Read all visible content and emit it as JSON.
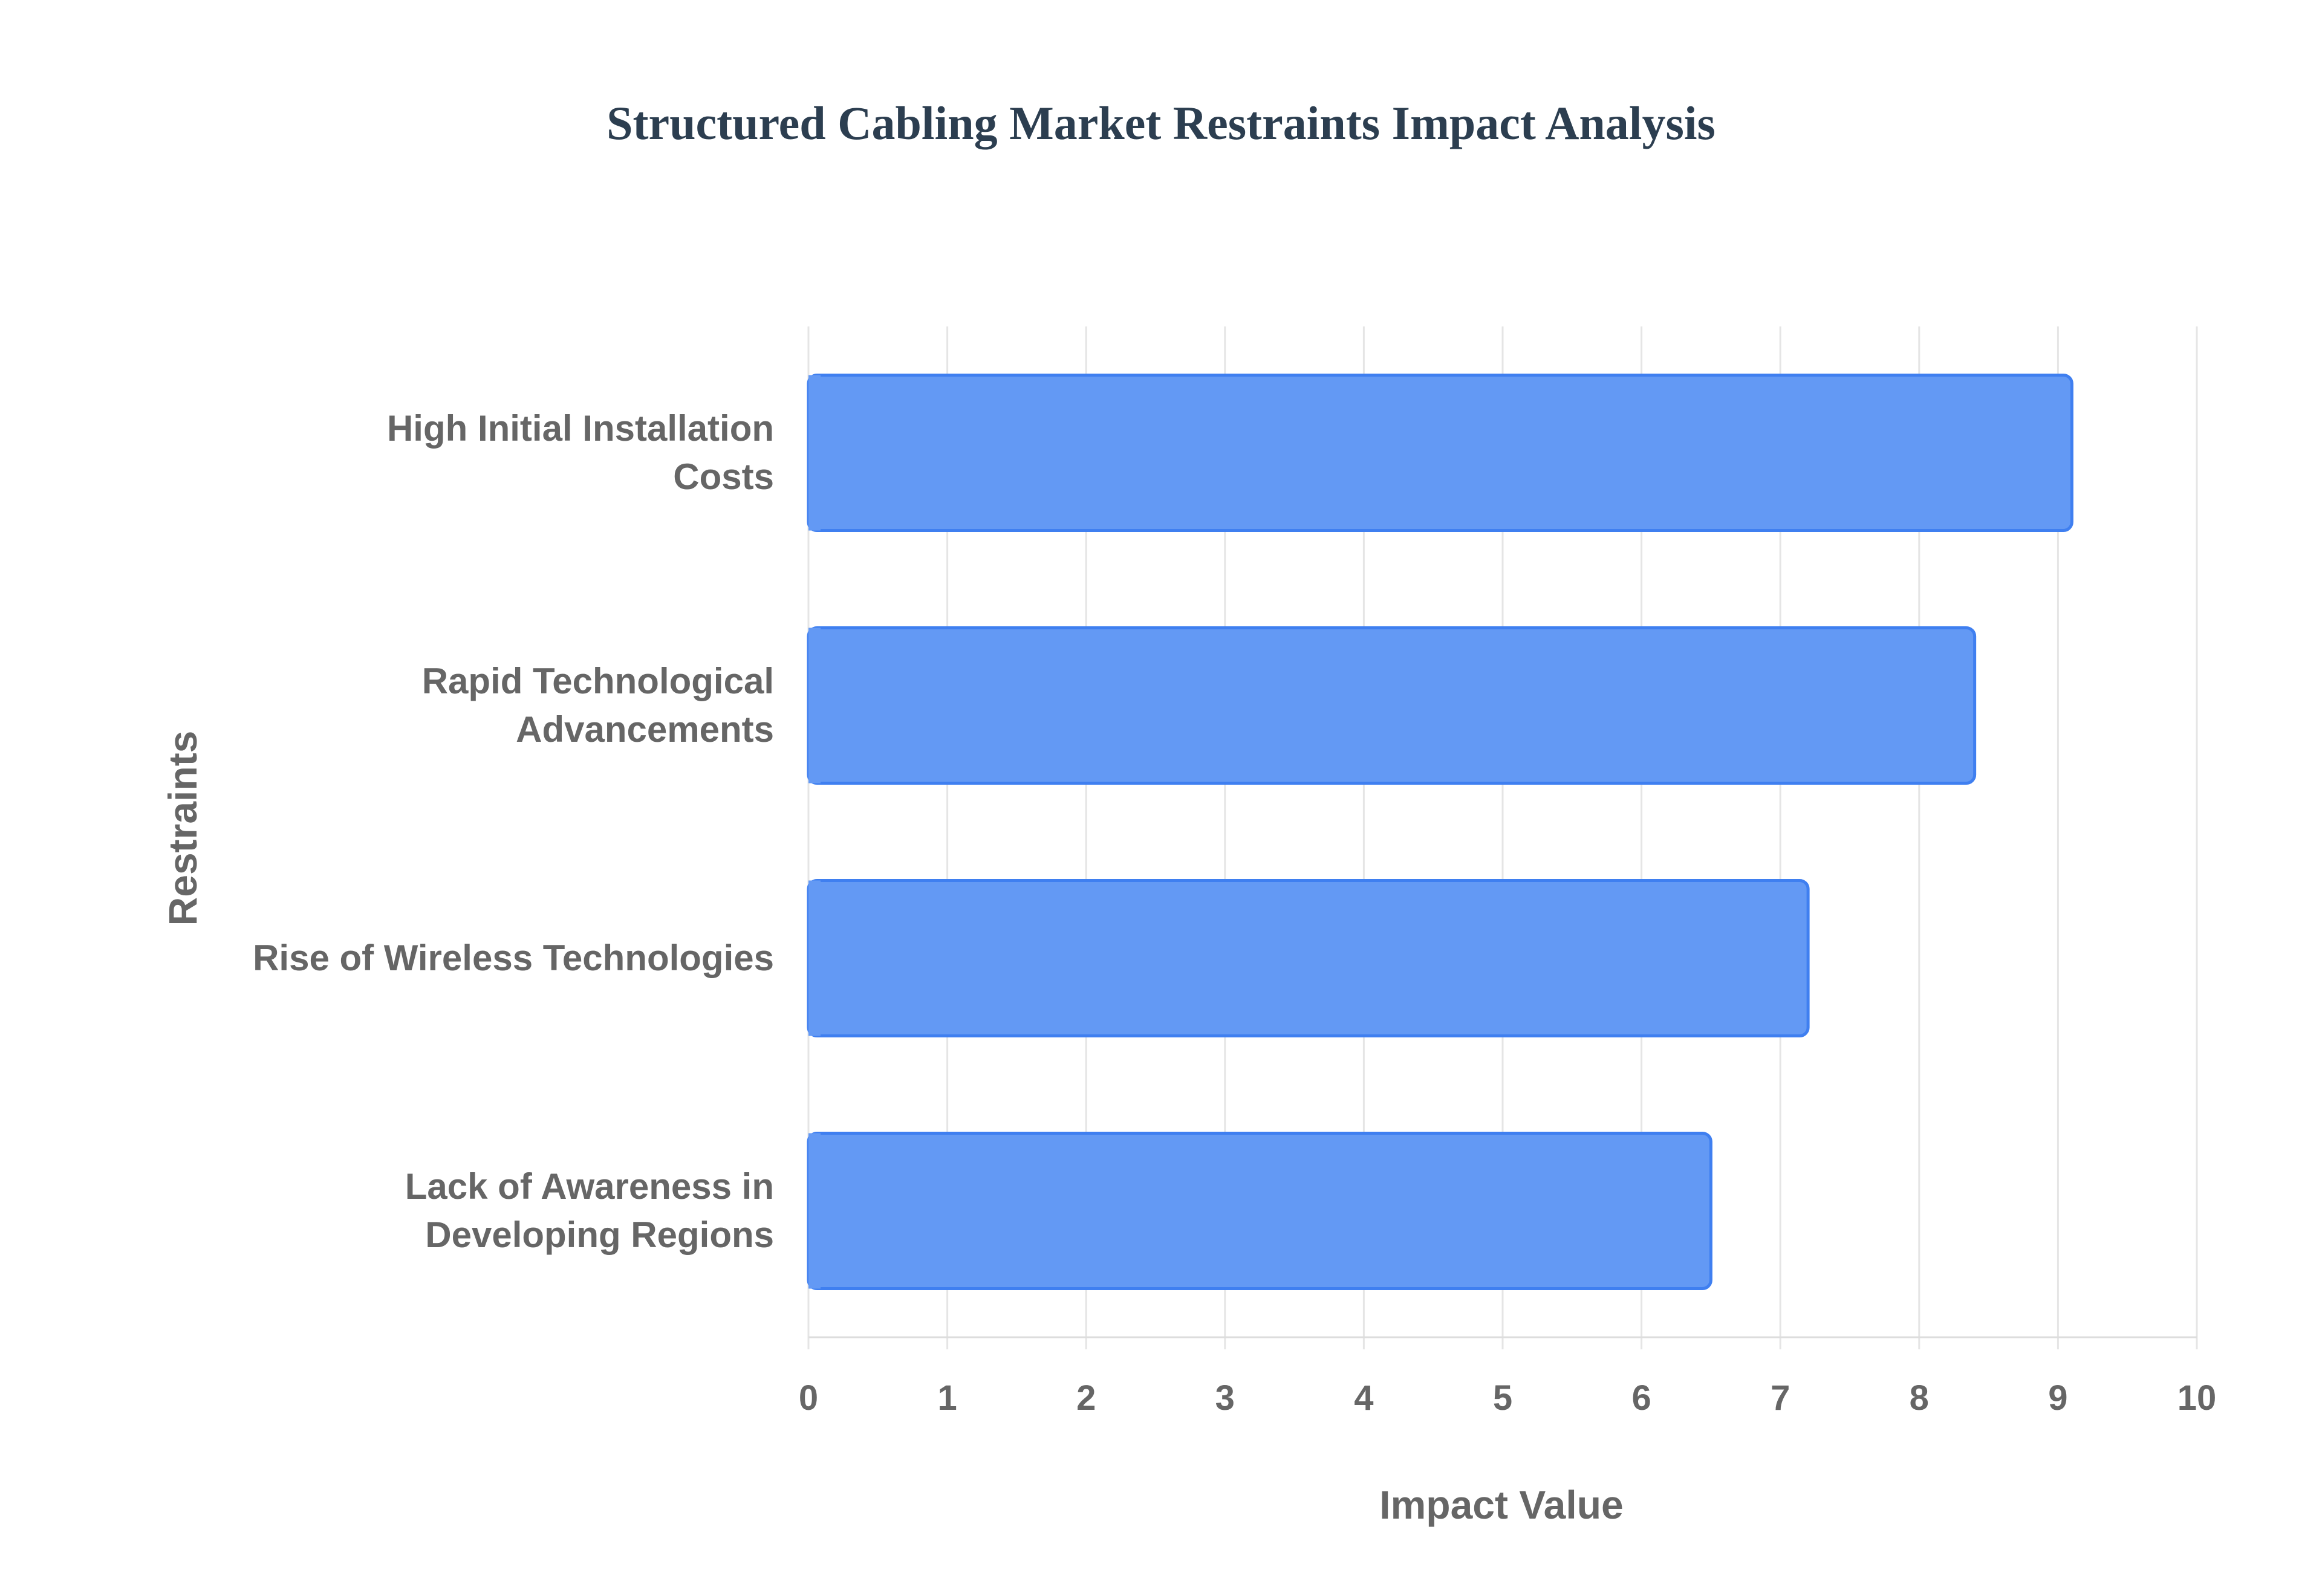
{
  "colors": {
    "bar_fill": "#6399f4",
    "bar_stroke": "#3f7ff0",
    "title": "#2c3e50",
    "text": "#666666",
    "grid": "#e5e5e5"
  },
  "chart_data": {
    "type": "bar",
    "orientation": "horizontal",
    "title": "Structured Cabling Market Restraints Impact Analysis",
    "xlabel": "Impact Value",
    "ylabel": "Restraints",
    "categories": [
      [
        "High Initial Installation",
        "Costs"
      ],
      [
        "Rapid Technological",
        "Advancements"
      ],
      [
        "Rise of Wireless Technologies"
      ],
      [
        "Lack of Awareness in",
        "Developing Regions"
      ]
    ],
    "category_names": [
      "High Initial Installation Costs",
      "Rapid Technological Advancements",
      "Rise of Wireless Technologies",
      "Lack of Awareness in Developing Regions"
    ],
    "values": [
      9.1,
      8.4,
      7.2,
      6.5
    ],
    "xlim": [
      0,
      10
    ],
    "xticks": [
      "0",
      "1",
      "2",
      "3",
      "4",
      "5",
      "6",
      "7",
      "8",
      "9",
      "10"
    ],
    "grid": true,
    "legend": "none"
  }
}
